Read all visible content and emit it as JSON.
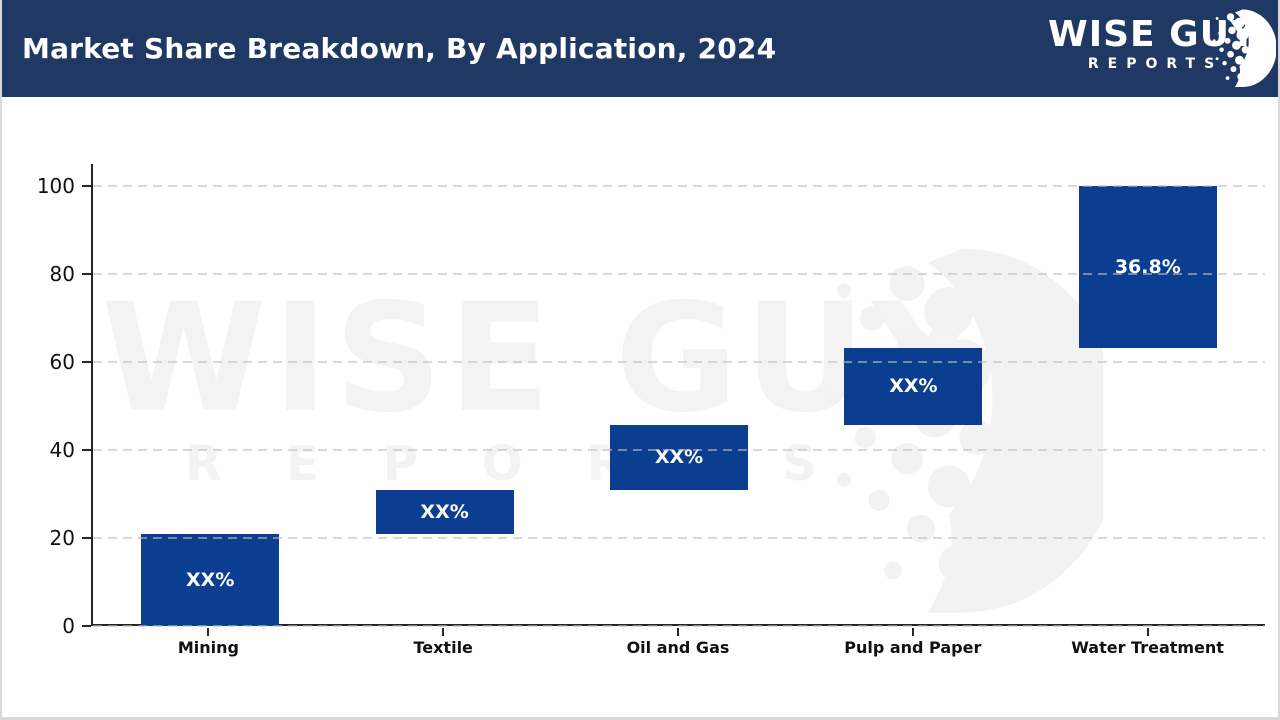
{
  "header": {
    "title": "Market Share Breakdown, By Application, 2024",
    "logo": {
      "line1": "WISE GUY",
      "line2": "REPORTS"
    }
  },
  "watermark": {
    "line1": "WISE GUY",
    "line2": "REPORTS"
  },
  "chart_data": {
    "type": "bar",
    "subtype": "floating-waterfall-segments",
    "title": "Market Share Breakdown, By Application, 2024",
    "categories": [
      "Mining",
      "Textile",
      "Oil and Gas",
      "Pulp and Paper",
      "Water Treatment"
    ],
    "bars": [
      {
        "category": "Mining",
        "start": 0,
        "end": 20.8,
        "label": "XX%"
      },
      {
        "category": "Textile",
        "start": 20.8,
        "end": 31.0,
        "label": "XX%"
      },
      {
        "category": "Oil and Gas",
        "start": 31.0,
        "end": 45.7,
        "label": "XX%"
      },
      {
        "category": "Pulp and Paper",
        "start": 45.7,
        "end": 63.2,
        "label": "XX%"
      },
      {
        "category": "Water Treatment",
        "start": 63.2,
        "end": 100,
        "label": "36.8%"
      }
    ],
    "yticks": [
      0,
      20,
      40,
      60,
      80,
      100
    ],
    "ylim": [
      0,
      105
    ],
    "grid": "horizontal-dashed",
    "legend": "none",
    "bar_color": "#0b3d91"
  },
  "colors": {
    "header_bg": "#1f3864",
    "bar": "#0b3d91",
    "grid": "#d9d9d9",
    "axis": "#262626",
    "watermark": "#f3f3f3"
  }
}
